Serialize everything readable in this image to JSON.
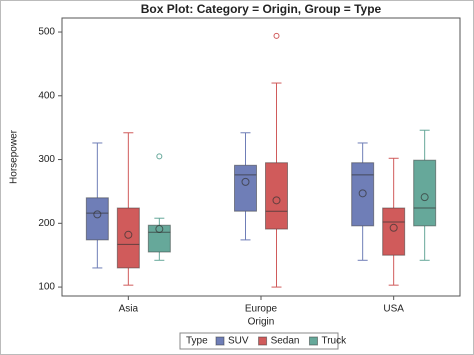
{
  "chart_data": {
    "type": "boxplot",
    "title": "Box Plot: Category = Origin, Group = Type",
    "x_label": "Origin",
    "y_label": "Horsepower",
    "legend_title": "Type",
    "categories": [
      "Asia",
      "Europe",
      "USA"
    ],
    "ylim": [
      86,
      522
    ],
    "yticks": [
      100,
      200,
      300,
      400,
      500
    ],
    "series": [
      {
        "name": "SUV",
        "color": "#6f7eb7",
        "values": [
          {
            "min": 130,
            "q1": 174,
            "median": 216,
            "q3": 240,
            "max": 326,
            "mean": 214,
            "outliers": []
          },
          {
            "min": 174,
            "q1": 219,
            "median": 276,
            "q3": 291,
            "max": 342,
            "mean": 265,
            "outliers": []
          },
          {
            "min": 142,
            "q1": 196,
            "median": 276,
            "q3": 295,
            "max": 326,
            "mean": 247,
            "outliers": []
          }
        ]
      },
      {
        "name": "Sedan",
        "color": "#d05b5b",
        "values": [
          {
            "min": 103,
            "q1": 130,
            "median": 167,
            "q3": 224,
            "max": 342,
            "mean": 182,
            "outliers": []
          },
          {
            "min": 100,
            "q1": 191,
            "median": 219,
            "q3": 295,
            "max": 420,
            "mean": 236,
            "outliers": [
              494
            ]
          },
          {
            "min": 103,
            "q1": 150,
            "median": 202,
            "q3": 224,
            "max": 302,
            "mean": 193,
            "outliers": []
          }
        ]
      },
      {
        "name": "Truck",
        "color": "#66a89a",
        "values": [
          {
            "min": 142,
            "q1": 155,
            "median": 186,
            "q3": 197,
            "max": 208,
            "mean": 191,
            "outliers": [
              305
            ]
          },
          null,
          {
            "min": 142,
            "q1": 196,
            "median": 224,
            "q3": 299,
            "max": 346,
            "mean": 241,
            "outliers": []
          }
        ]
      }
    ]
  }
}
